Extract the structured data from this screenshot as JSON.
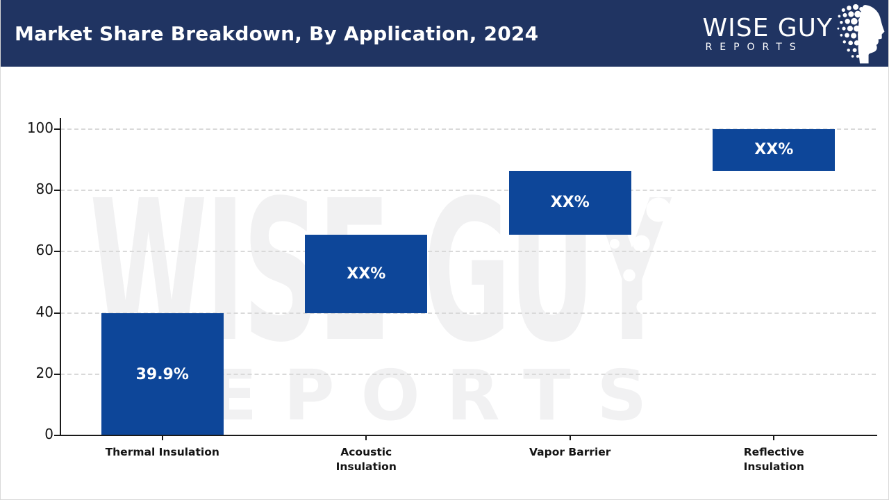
{
  "header": {
    "title": "Market Share Breakdown, By Application, 2024",
    "logo": {
      "brand": "WISE GUY",
      "sub": "REPORTS"
    }
  },
  "watermark": {
    "line1": "WISE GUY",
    "line2": "REPORTS"
  },
  "chart_data": {
    "type": "bar",
    "variant": "waterfall-segments",
    "title": "Market Share Breakdown, By Application, 2024",
    "categories": [
      "Thermal Insulation",
      "Acoustic\nInsulation",
      "Vapor Barrier",
      "Reflective\nInsulation"
    ],
    "segments": [
      {
        "category": "Thermal Insulation",
        "label": "39.9%",
        "start": 0,
        "end": 39.9,
        "value": 39.9
      },
      {
        "category": "Acoustic Insulation",
        "label": "XX%",
        "start": 39.9,
        "end": 65.6,
        "value_est": 25.7
      },
      {
        "category": "Vapor Barrier",
        "label": "XX%",
        "start": 65.6,
        "end": 86.4,
        "value_est": 20.8
      },
      {
        "category": "Reflective Insulation",
        "label": "XX%",
        "start": 86.4,
        "end": 100,
        "value_est": 13.6
      }
    ],
    "xlabel": "",
    "ylabel": "",
    "ylim": [
      0,
      100
    ],
    "yticks": [
      0,
      20,
      40,
      60,
      80,
      100
    ],
    "grid": "horizontal dashed",
    "legend": "none",
    "bar_color": "#0d4699",
    "bar_label_color": "#ffffff"
  },
  "colors": {
    "header_bg": "#203462",
    "header_text": "#ffffff",
    "page_bg": "#ffffff",
    "axis": "#1a1a1a",
    "tick_label": "#141414",
    "gridline": "#d9d9d9",
    "watermark": "#f1f1f2",
    "card_border": "#d8d8d8"
  }
}
